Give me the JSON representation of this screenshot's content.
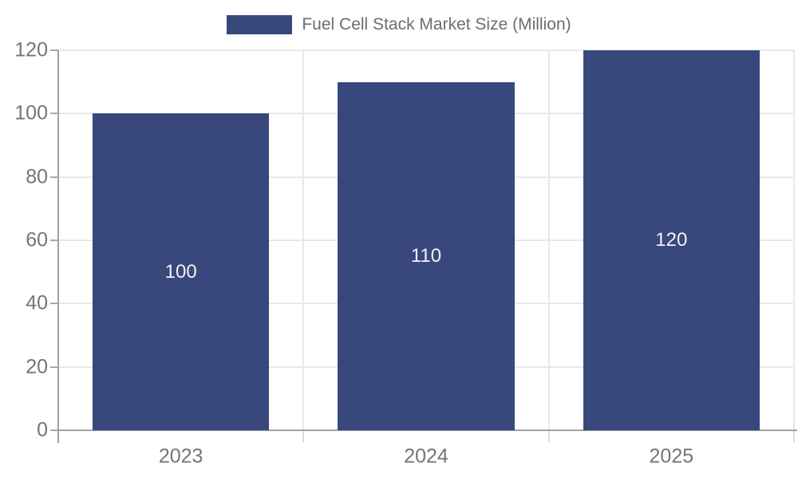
{
  "chart_data": {
    "type": "bar",
    "series_name": "Fuel Cell Stack Market Size (Million)",
    "categories": [
      "2023",
      "2024",
      "2025"
    ],
    "values": [
      100,
      110,
      120
    ],
    "ylim": [
      0,
      120
    ],
    "yticks": [
      0,
      20,
      40,
      60,
      80,
      100,
      120
    ],
    "grid": true,
    "legend_position": "top-center",
    "bar_color": "#38487d",
    "bar_label_color": "#f2f2f2",
    "axis_text_color": "#757575",
    "axis_line_color": "#a3a3a3",
    "gridline_color": "#e8e8e8",
    "background_color": "#ffffff"
  }
}
